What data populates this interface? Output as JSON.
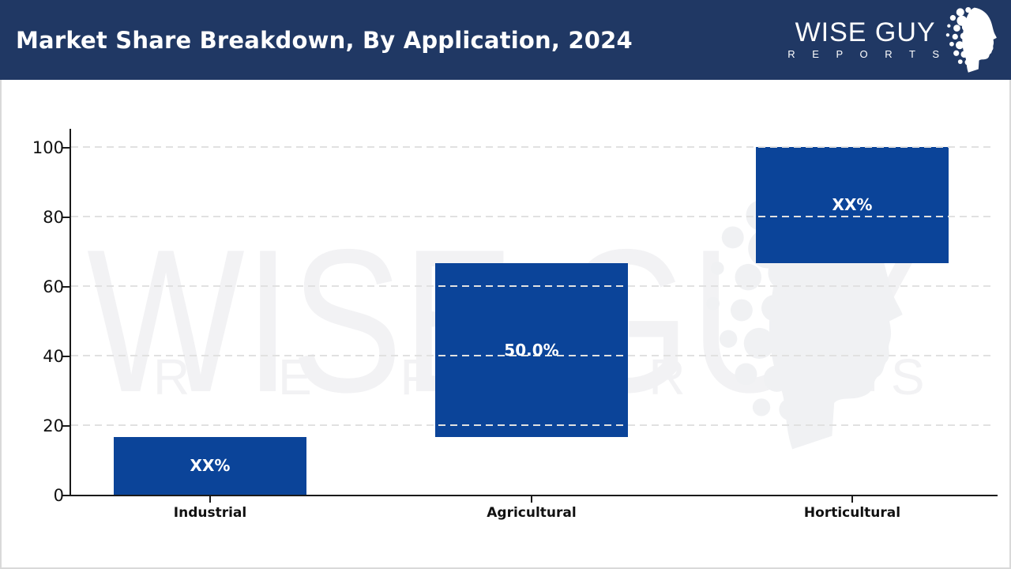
{
  "header": {
    "title": "Market Share Breakdown, By Application, 2024",
    "logo": {
      "line1": "WISE GUY",
      "line2": "R E P O R T S"
    }
  },
  "watermark": {
    "line1": "WISE GUY",
    "line2": "R E P O R T S"
  },
  "colors": {
    "header_bg": "#203864",
    "bar": "#0b4499",
    "grid": "#e1e1e1",
    "axis": "#1a1a1a",
    "bar_label_text": "#ffffff",
    "watermark": "#f2f2f4"
  },
  "icons": {
    "logo_face": "wiseguy-dotted-face-icon",
    "watermark_face": "wiseguy-dotted-face-icon"
  },
  "chart_data": {
    "type": "bar",
    "subtype": "waterfall-stacked-percent",
    "title": "Market Share Breakdown, By Application, 2024",
    "categories": [
      "Industrial",
      "Agricultural",
      "Horticultural"
    ],
    "segments": [
      {
        "category": "Industrial",
        "start": 0,
        "end": 16.7,
        "label": "XX%"
      },
      {
        "category": "Agricultural",
        "start": 16.7,
        "end": 66.7,
        "label": "50.0%"
      },
      {
        "category": "Horticultural",
        "start": 66.7,
        "end": 100,
        "label": "XX%"
      }
    ],
    "xlabel": "",
    "ylabel": "",
    "yticks": [
      0,
      20,
      40,
      60,
      80,
      100
    ],
    "ylim": [
      0,
      105
    ],
    "grid": "horizontal-dashed, drawn above bars",
    "legend": "none"
  }
}
